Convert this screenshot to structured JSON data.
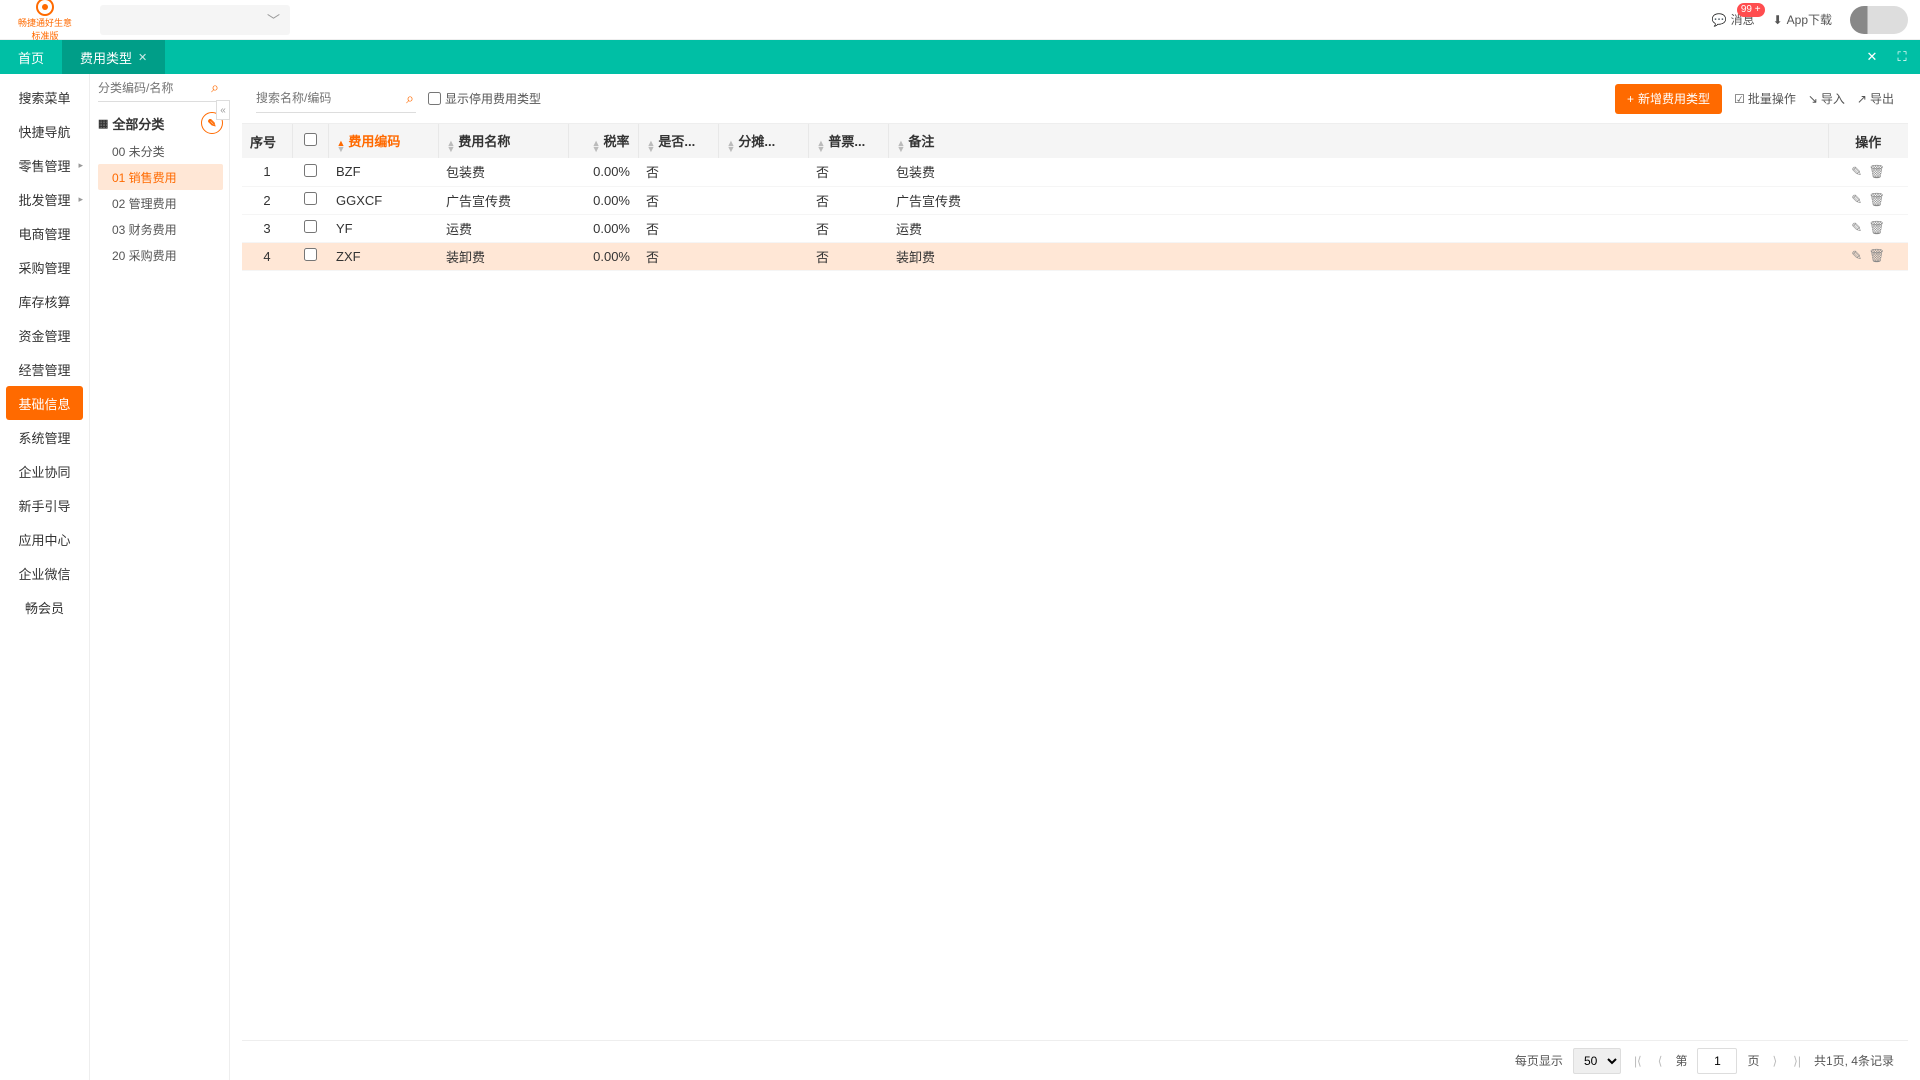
{
  "header": {
    "logo_sub": "畅捷通好生意",
    "logo_tag": "标准版",
    "msg_label": "消息",
    "msg_badge": "99 +",
    "app_label": "App下载"
  },
  "tabs": {
    "home": "首页",
    "current": "费用类型"
  },
  "nav": {
    "items": [
      {
        "label": "搜索菜单",
        "sub": false
      },
      {
        "label": "快捷导航",
        "sub": false
      },
      {
        "label": "零售管理",
        "sub": true
      },
      {
        "label": "批发管理",
        "sub": true
      },
      {
        "label": "电商管理",
        "sub": false
      },
      {
        "label": "采购管理",
        "sub": false
      },
      {
        "label": "库存核算",
        "sub": false
      },
      {
        "label": "资金管理",
        "sub": false
      },
      {
        "label": "经营管理",
        "sub": false
      },
      {
        "label": "基础信息",
        "sub": false,
        "active": true
      },
      {
        "label": "系统管理",
        "sub": false
      },
      {
        "label": "企业协同",
        "sub": false
      },
      {
        "label": "新手引导",
        "sub": false
      },
      {
        "label": "应用中心",
        "sub": false
      },
      {
        "label": "企业微信",
        "sub": false
      },
      {
        "label": "畅会员",
        "sub": false
      }
    ]
  },
  "toolbar": {
    "cat_search_ph": "分类编码/名称",
    "main_search_ph": "搜索名称/编码",
    "show_disabled": "显示停用费用类型",
    "new_btn": "新增费用类型",
    "batch": "批量操作",
    "import": "导入",
    "export": "导出"
  },
  "cats": {
    "all": "全部分类",
    "items": [
      {
        "label": "00 未分类"
      },
      {
        "label": "01 销售费用",
        "active": true
      },
      {
        "label": "02 管理费用"
      },
      {
        "label": "03 财务费用"
      },
      {
        "label": "20 采购费用"
      }
    ]
  },
  "table": {
    "cols": {
      "seq": "序号",
      "code": "费用编码",
      "name": "费用名称",
      "rate": "税率",
      "yn": "是否...",
      "share": "分摊...",
      "ticket": "普票...",
      "remark": "备注",
      "ops": "操作"
    },
    "rows": [
      {
        "seq": "1",
        "code": "BZF",
        "name": "包装费",
        "rate": "0.00%",
        "yn": "否",
        "share": "",
        "ticket": "否",
        "remark": "包装费"
      },
      {
        "seq": "2",
        "code": "GGXCF",
        "name": "广告宣传费",
        "rate": "0.00%",
        "yn": "否",
        "share": "",
        "ticket": "否",
        "remark": "广告宣传费"
      },
      {
        "seq": "3",
        "code": "YF",
        "name": "运费",
        "rate": "0.00%",
        "yn": "否",
        "share": "",
        "ticket": "否",
        "remark": "运费"
      },
      {
        "seq": "4",
        "code": "ZXF",
        "name": "装卸费",
        "rate": "0.00%",
        "yn": "否",
        "share": "",
        "ticket": "否",
        "remark": "装卸费",
        "hover": true
      }
    ]
  },
  "pager": {
    "per_page_lbl": "每页显示",
    "per_page_val": "50",
    "page_lbl_a": "第",
    "page_val": "1",
    "page_lbl_b": "页",
    "summary": "共1页, 4条记录"
  },
  "colors": {
    "teal": "#00bfa5",
    "teal_dark": "#009e88",
    "orange": "#ff6a00",
    "row_hover": "#ffe7d6"
  }
}
